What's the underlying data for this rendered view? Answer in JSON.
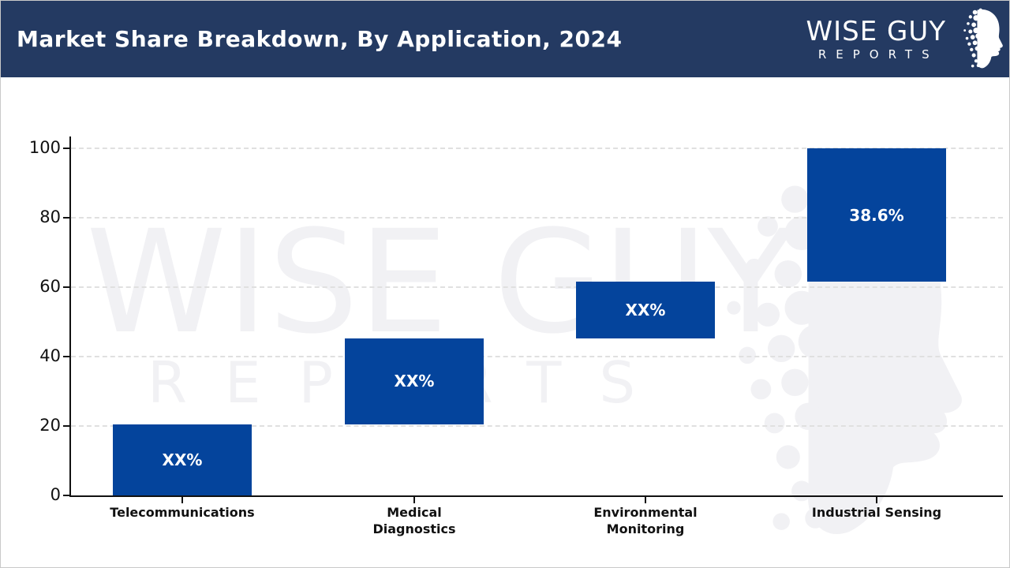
{
  "header": {
    "title": "Market Share Breakdown, By Application, 2024",
    "logo": {
      "line1": "WISE GUY",
      "line2": "REPORTS"
    }
  },
  "watermark": {
    "line1": "WISE GUY",
    "line2": "REPORTS"
  },
  "colors": {
    "header_bg": "#243A62",
    "bar": "#04449C",
    "bar_label": "#FFFFFF",
    "grid": "#E0E0E0",
    "axis": "#111111",
    "watermark": "#F1F1F4",
    "page_bg": "#FFFFFF"
  },
  "chart_data": {
    "type": "bar",
    "subtype": "waterfall",
    "title": "Market Share Breakdown, By Application, 2024",
    "categories": [
      "Telecommunications",
      "Medical Diagnostics",
      "Environmental Monitoring",
      "Industrial Sensing"
    ],
    "bars": [
      {
        "category": "Telecommunications",
        "label_lines": [
          "Telecommunications"
        ],
        "start": 0,
        "end": 20.5,
        "value_label": "XX%"
      },
      {
        "category": "Medical Diagnostics",
        "label_lines": [
          "Medical",
          "Diagnostics"
        ],
        "start": 20.5,
        "end": 45.2,
        "value_label": "XX%"
      },
      {
        "category": "Environmental Monitoring",
        "label_lines": [
          "Environmental",
          "Monitoring"
        ],
        "start": 45.2,
        "end": 61.5,
        "value_label": "XX%"
      },
      {
        "category": "Industrial Sensing",
        "label_lines": [
          "Industrial Sensing"
        ],
        "start": 61.5,
        "end": 100,
        "value_label": "38.6%"
      }
    ],
    "ylim": [
      0,
      100
    ],
    "yticks": [
      0,
      20,
      40,
      60,
      80,
      100
    ],
    "grid": "dashed-horizontal",
    "legend": null,
    "xlabel": "",
    "ylabel": ""
  }
}
